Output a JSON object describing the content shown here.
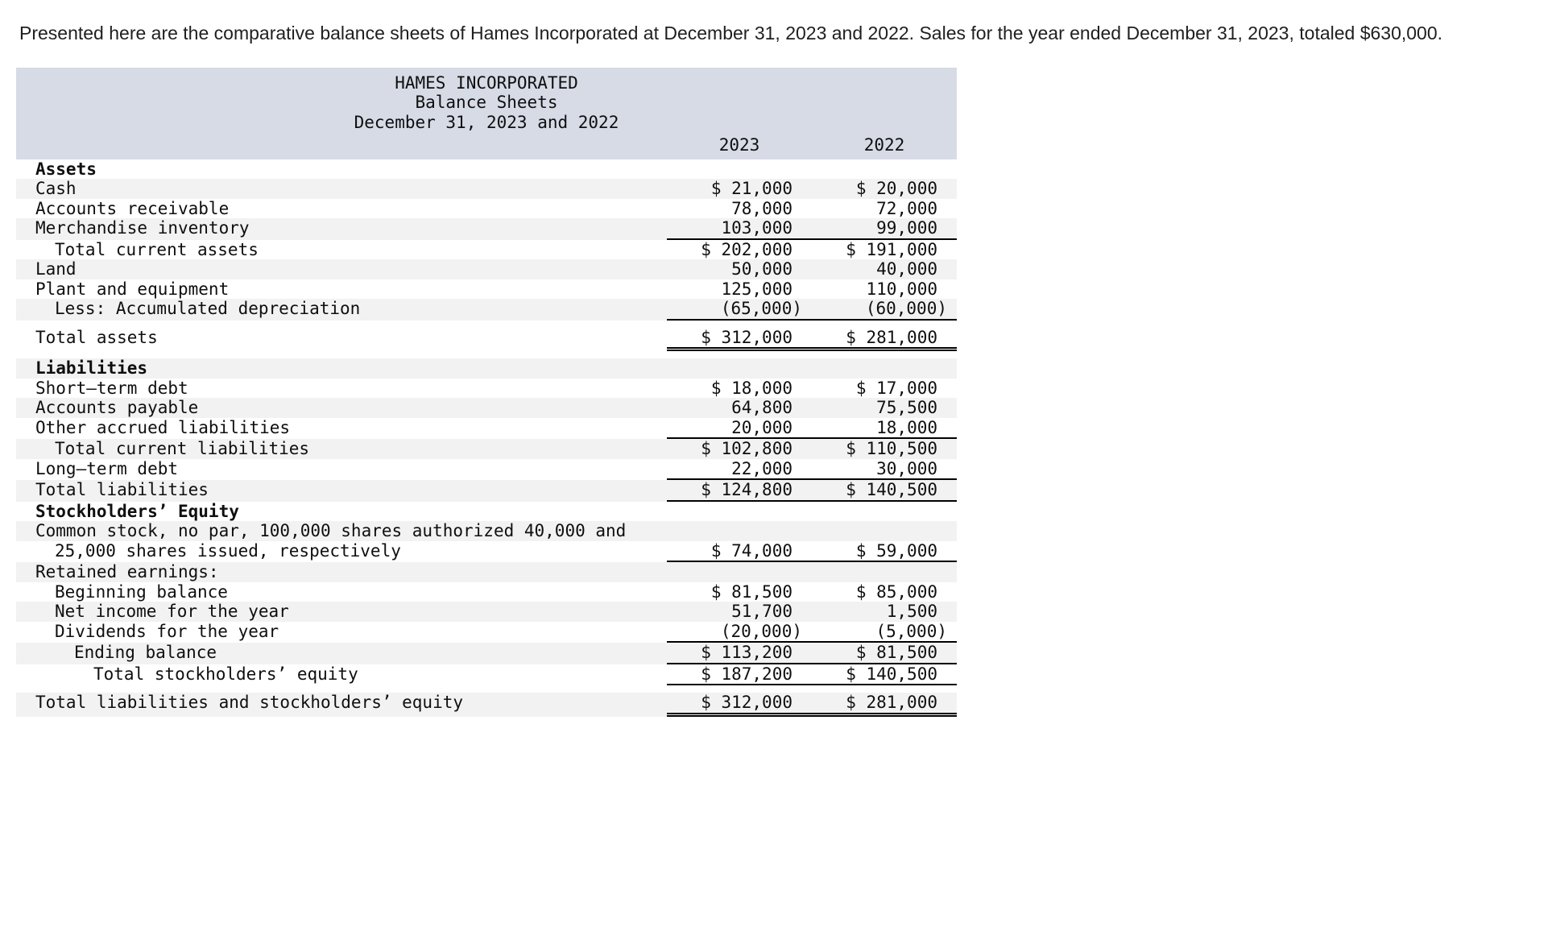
{
  "intro": {
    "text": "Presented here are the comparative balance sheets of Hames Incorporated at December 31, 2023 and 2022. Sales for the year ended December 31, 2023, totaled $630,000."
  },
  "table": {
    "title_lines": [
      "HAMES INCORPORATED",
      "Balance Sheets",
      "December 31, 2023 and 2022"
    ],
    "columns": [
      "2023",
      "2022"
    ],
    "header_bg": "#d6dbe6",
    "stripe_color": "#f2f2f2",
    "rows": [
      {
        "label": "Assets",
        "bold": true,
        "indent": 0,
        "values": [
          "",
          ""
        ]
      },
      {
        "label": "Cash",
        "indent": 0,
        "values": [
          "$ 21,000",
          "$ 20,000"
        ]
      },
      {
        "label": "Accounts receivable",
        "indent": 0,
        "values": [
          "78,000",
          "72,000"
        ]
      },
      {
        "label": "Merchandise inventory",
        "indent": 0,
        "values": [
          "103,000",
          "99,000"
        ],
        "rule": "single"
      },
      {
        "label": "Total current assets",
        "indent": 1,
        "values": [
          "$ 202,000",
          "$ 191,000"
        ]
      },
      {
        "label": "Land",
        "indent": 0,
        "values": [
          "50,000",
          "40,000"
        ]
      },
      {
        "label": "Plant and equipment",
        "indent": 0,
        "values": [
          "125,000",
          "110,000"
        ]
      },
      {
        "label": "Less: Accumulated depreciation",
        "indent": 1,
        "values": [
          "(65,000)",
          "(60,000)"
        ],
        "rule": "single",
        "paren": true
      },
      {
        "label": "Total assets",
        "indent": 0,
        "values": [
          "$ 312,000",
          "$ 281,000"
        ],
        "rule": "double",
        "gap": true
      },
      {
        "label": "Liabilities",
        "bold": true,
        "indent": 0,
        "values": [
          "",
          ""
        ],
        "gap": true
      },
      {
        "label": "Short–term debt",
        "indent": 0,
        "values": [
          "$ 18,000",
          "$ 17,000"
        ]
      },
      {
        "label": "Accounts payable",
        "indent": 0,
        "values": [
          "64,800",
          "75,500"
        ]
      },
      {
        "label": "Other accrued liabilities",
        "indent": 0,
        "values": [
          "20,000",
          "18,000"
        ],
        "rule": "single"
      },
      {
        "label": "Total current liabilities",
        "indent": 1,
        "values": [
          "$ 102,800",
          "$ 110,500"
        ]
      },
      {
        "label": "Long–term debt",
        "indent": 0,
        "values": [
          "22,000",
          "30,000"
        ],
        "rule": "single"
      },
      {
        "label": "Total liabilities",
        "indent": 0,
        "values": [
          "$ 124,800",
          "$ 140,500"
        ],
        "rule": "single"
      },
      {
        "label": "Stockholders’ Equity",
        "bold": true,
        "indent": 0,
        "values": [
          "",
          ""
        ]
      },
      {
        "label": "Common stock, no par, 100,000 shares authorized 40,000 and",
        "indent": 0,
        "values": [
          "",
          ""
        ]
      },
      {
        "label": "25,000 shares issued, respectively",
        "indent": 1,
        "values": [
          "$ 74,000",
          "$ 59,000"
        ],
        "rule": "single"
      },
      {
        "label": "Retained earnings:",
        "indent": 0,
        "values": [
          "",
          ""
        ]
      },
      {
        "label": "Beginning balance",
        "indent": 1,
        "values": [
          "$ 81,500",
          "$ 85,000"
        ]
      },
      {
        "label": "Net income for the year",
        "indent": 1,
        "values": [
          "51,700",
          "1,500"
        ]
      },
      {
        "label": "Dividends for the year",
        "indent": 1,
        "values": [
          "(20,000)",
          "(5,000)"
        ],
        "rule": "single",
        "paren": true
      },
      {
        "label": "Ending balance",
        "indent": 2,
        "values": [
          "$ 113,200",
          "$ 81,500"
        ],
        "rule": "single"
      },
      {
        "label": "Total stockholders’ equity",
        "indent": 3,
        "values": [
          "$ 187,200",
          "$ 140,500"
        ],
        "rule": "single"
      },
      {
        "label": "Total liabilities and stockholders’ equity",
        "indent": 0,
        "values": [
          "$ 312,000",
          "$ 281,000"
        ],
        "rule": "double",
        "gap": true
      }
    ]
  }
}
